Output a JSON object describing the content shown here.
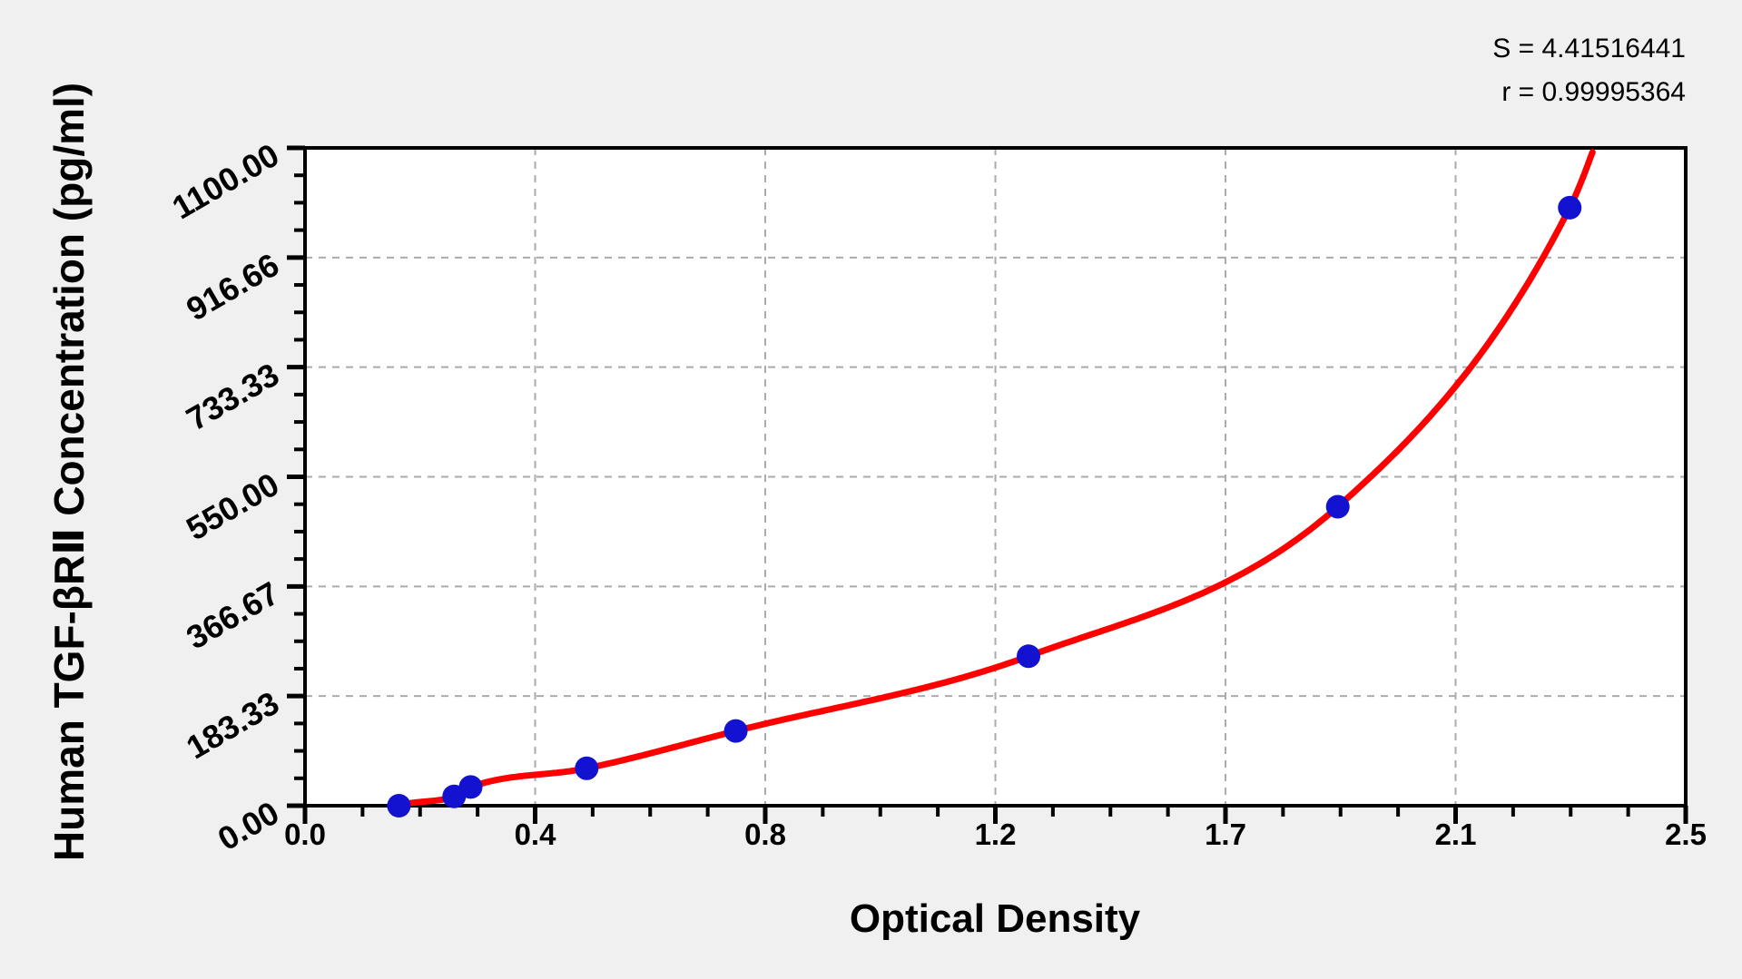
{
  "annotation": {
    "s_text": "S = 4.41516441",
    "r_text": "r = 0.99995364"
  },
  "chart_data": {
    "type": "scatter",
    "title": "",
    "xlabel": "Optical Density",
    "ylabel": "Human TGF-βRⅡ Concentration (pg/ml)",
    "xlim": [
      0,
      2.5
    ],
    "ylim": [
      0,
      1100
    ],
    "x_tick_labels": [
      "0.0",
      "0.4",
      "0.8",
      "1.2",
      "1.7",
      "2.1",
      "2.5"
    ],
    "y_tick_labels": [
      "0.00",
      "183.33",
      "366.67",
      "550.00",
      "733.33",
      "916.66",
      "1100.00"
    ],
    "minor_ticks_per_interval": 3,
    "grid": "dashed",
    "legend": "none",
    "fit": {
      "S": 4.41516441,
      "r": 0.99995364
    },
    "points": [
      {
        "x": 0.17,
        "y": 0
      },
      {
        "x": 0.27,
        "y": 15.6
      },
      {
        "x": 0.3,
        "y": 31.25
      },
      {
        "x": 0.51,
        "y": 62.5
      },
      {
        "x": 0.78,
        "y": 125
      },
      {
        "x": 1.31,
        "y": 250
      },
      {
        "x": 1.87,
        "y": 500
      },
      {
        "x": 2.29,
        "y": 1000
      }
    ],
    "curve_extension": [
      {
        "x": 0.158,
        "y": -5
      },
      {
        "x": 2.38,
        "y": 1220
      }
    ],
    "colors": {
      "curve": "#ff0000",
      "marker": "#1212d0",
      "grid": "#ababab",
      "axis": "#000000",
      "plot_bg": "#ffffff",
      "page_bg": "#f0f0f0"
    }
  }
}
